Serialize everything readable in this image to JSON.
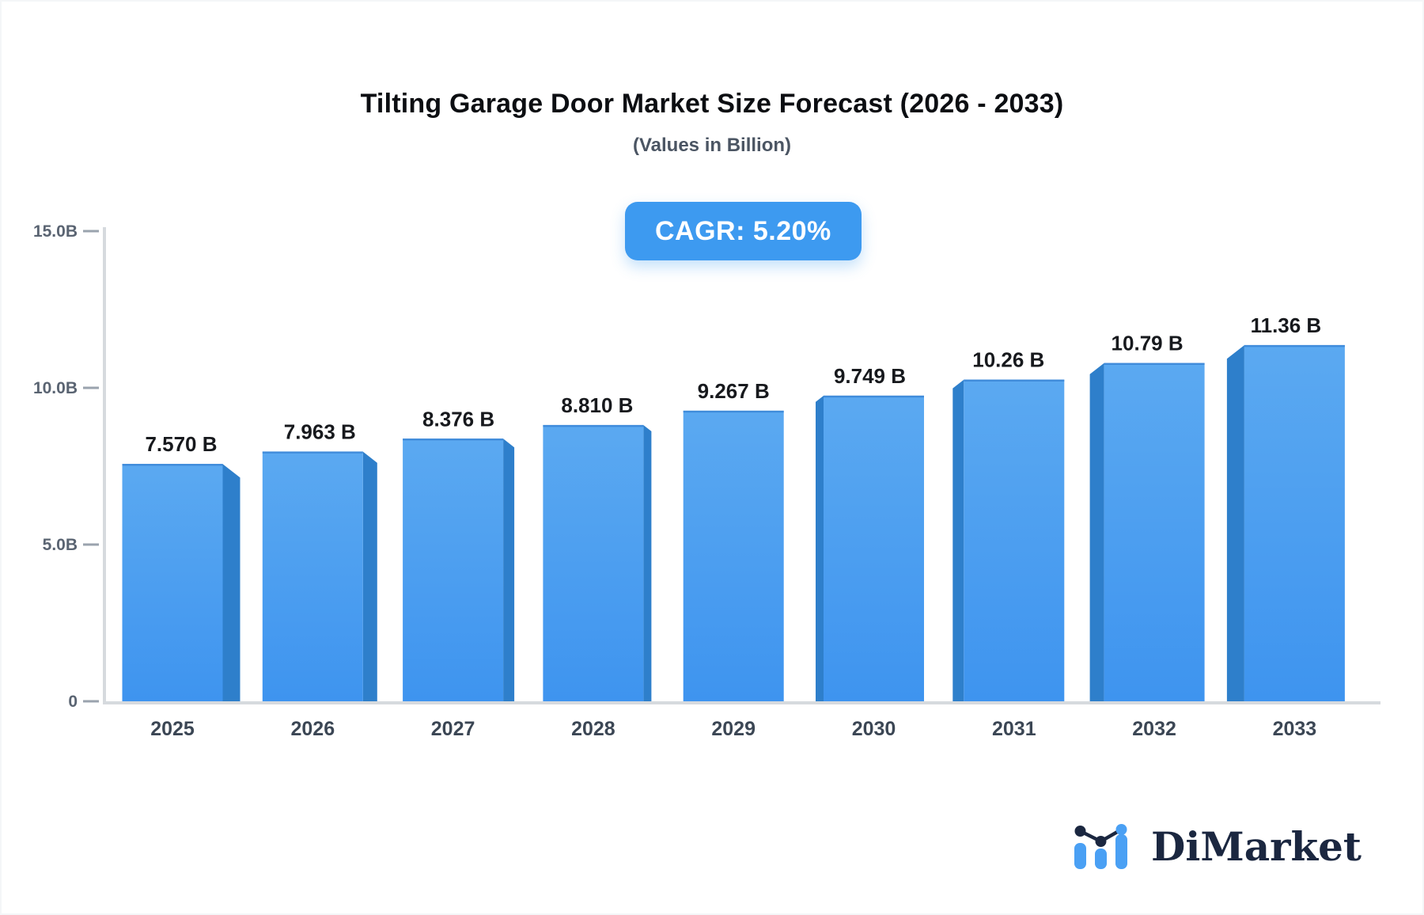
{
  "header": {
    "title": "Tilting Garage Door Market Size Forecast (2026 - 2033)",
    "subtitle": "(Values in Billion)",
    "badge": {
      "label": "CAGR: 5.20%",
      "background": "#3d9af0",
      "text_color": "#ffffff"
    }
  },
  "chart_data": {
    "type": "bar",
    "title": "Tilting Garage Door Market Size Forecast (2026 - 2033)",
    "subtitle": "(Values in Billion)",
    "categories": [
      "2025",
      "2026",
      "2027",
      "2028",
      "2029",
      "2030",
      "2031",
      "2032",
      "2033"
    ],
    "values": [
      7.57,
      7.963,
      8.376,
      8.81,
      9.267,
      9.749,
      10.26,
      10.79,
      11.36
    ],
    "value_labels": [
      "7.570 B",
      "7.963 B",
      "8.376 B",
      "8.810 B",
      "9.267 B",
      "9.749 B",
      "10.26 B",
      "10.79 B",
      "11.36 B"
    ],
    "ylim": [
      0,
      15
    ],
    "y_ticks": [
      {
        "label": "15.0B",
        "value": 15
      },
      {
        "label": "10.0B",
        "value": 10
      },
      {
        "label": "5.0B",
        "value": 5
      },
      {
        "label": "0",
        "value": 0
      }
    ],
    "grid": false,
    "legend": false,
    "style": {
      "bar_top": "#5ba9f1",
      "bar_bottom": "#3e94ef",
      "bar_side": "#2e7fcb",
      "bar_edge": "#3c88d8",
      "axis_color": "#d6dade",
      "tick_dash_color": "#9aa3ae",
      "tick_label_color": "#5a6472",
      "category_label_color": "#3b4654",
      "value_label_color": "#17191d"
    }
  },
  "footer": {
    "logo": {
      "icon": "dimarket-bar-chart-icon",
      "text": "DiMarket",
      "text_color": "#1b2740",
      "icon_bar_color": "#4aa0f4",
      "icon_accent_color": "#1b2740"
    }
  }
}
